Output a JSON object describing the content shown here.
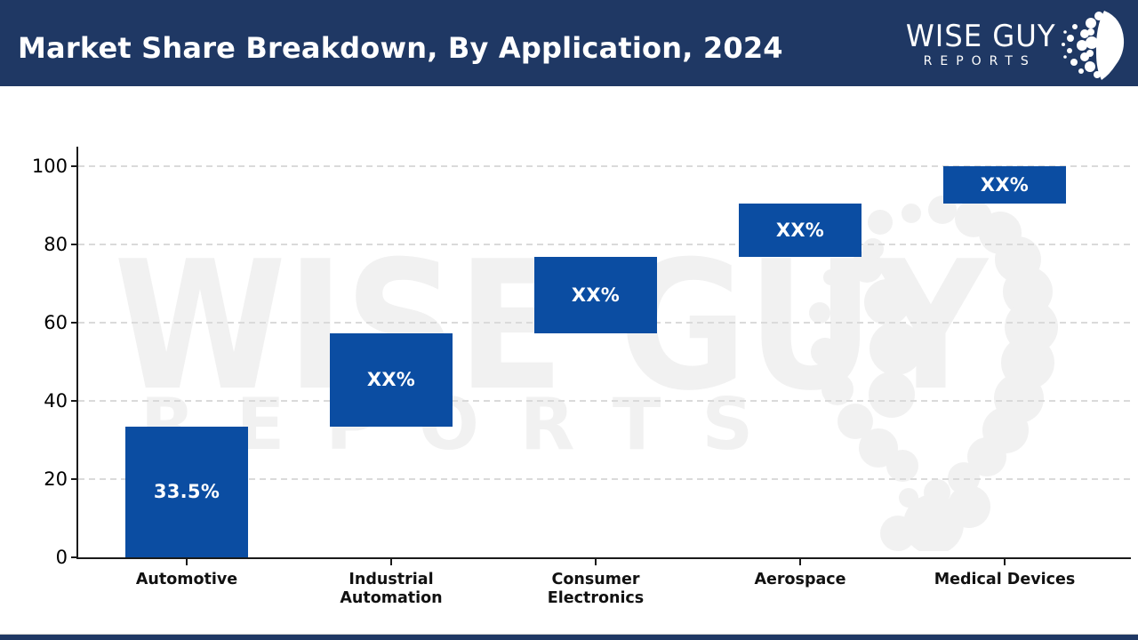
{
  "header": {
    "title": "Market Share Breakdown, By Application, 2024",
    "logo": {
      "name": "Wise Guy Reports",
      "line1": "WISE GUY",
      "line2": "REPORTS"
    }
  },
  "watermark": {
    "line1": "WISE GUY",
    "line2": "REPORTS"
  },
  "colors": {
    "header_bg": "#1f3864",
    "footer_bg": "#1f3864",
    "title_text": "#ffffff",
    "bar": "#0b4da2",
    "bar_label_text": "#ffffff",
    "grid": "#dadada",
    "axis": "#1a1a1a",
    "tick_label": "#000000",
    "category_label": "#111111",
    "watermark": "#f1f1f1"
  },
  "chart_data": {
    "type": "bar",
    "subtype": "floating-waterfall",
    "title": "Market Share Breakdown, By Application, 2024",
    "xlabel": "",
    "ylabel": "",
    "categories": [
      "Automotive",
      "Industrial Automation",
      "Consumer Electronics",
      "Aerospace",
      "Medical Devices"
    ],
    "category_label_lines": [
      [
        "Automotive"
      ],
      [
        "Industrial",
        "Automation"
      ],
      [
        "Consumer",
        "Electronics"
      ],
      [
        "Aerospace"
      ],
      [
        "Medical Devices"
      ]
    ],
    "segments": [
      {
        "category": "Automotive",
        "start": 0,
        "end": 33.5,
        "value_label": "33.5%"
      },
      {
        "category": "Industrial Automation",
        "start": 33.5,
        "end": 57.3,
        "value_label": "XX%"
      },
      {
        "category": "Consumer Electronics",
        "start": 57.3,
        "end": 76.8,
        "value_label": "XX%"
      },
      {
        "category": "Aerospace",
        "start": 76.8,
        "end": 90.5,
        "value_label": "XX%"
      },
      {
        "category": "Medical Devices",
        "start": 90.5,
        "end": 100,
        "value_label": "XX%"
      }
    ],
    "yticks": [
      0,
      20,
      40,
      60,
      80,
      100
    ],
    "ylim": [
      0,
      105
    ],
    "grid": "horizontal-dashed",
    "legend": "none"
  }
}
